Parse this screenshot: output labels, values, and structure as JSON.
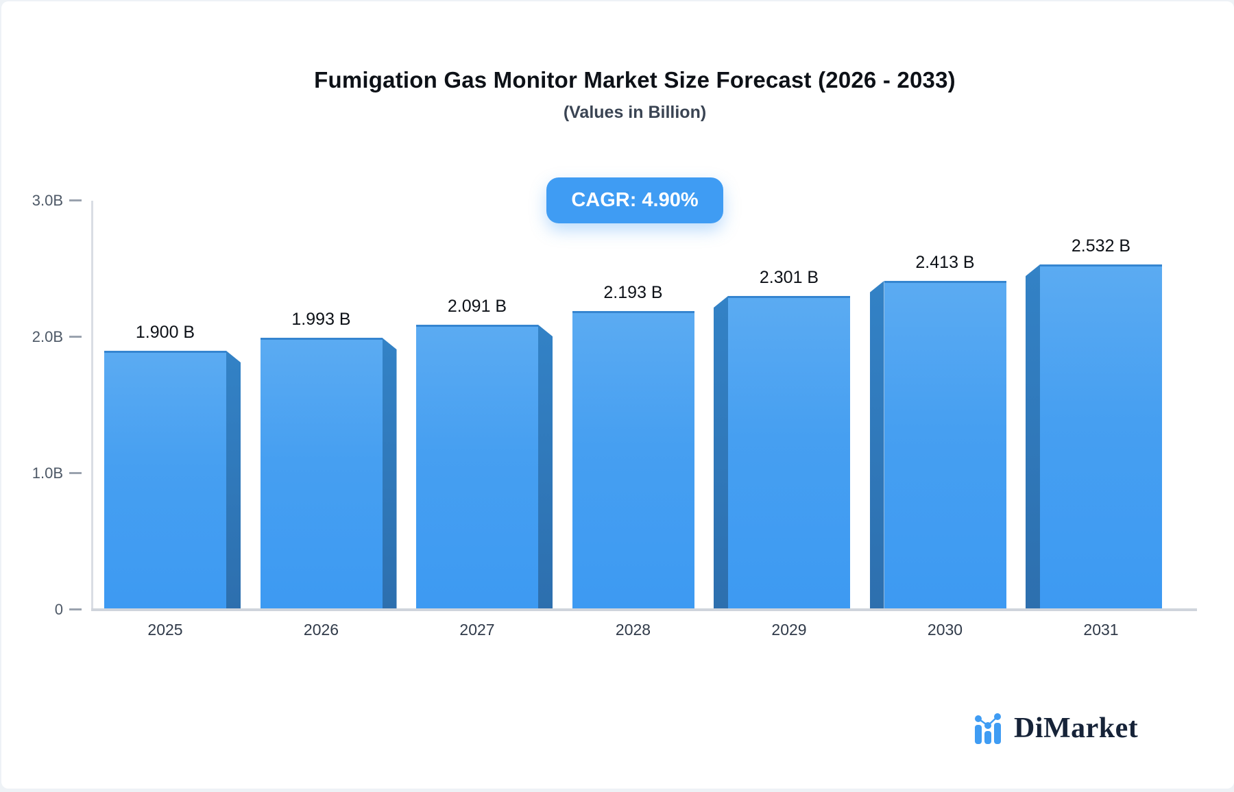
{
  "title": "Fumigation Gas Monitor Market Size Forecast (2026 - 2033)",
  "subtitle": "(Values in Billion)",
  "badge": {
    "label": "CAGR: 4.90%"
  },
  "logo": {
    "text": "DiMarket"
  },
  "colors": {
    "bar_face_top": "#5babf2",
    "bar_face_bottom": "#3d9af2",
    "bar_side": "#2e74b5",
    "badge_background": "#3f9cf3",
    "axis_line": "#d9dde4",
    "logo_navy": "#162338"
  },
  "chart_data": {
    "type": "bar",
    "title": "Fumigation Gas Monitor Market Size Forecast (2026 - 2033)",
    "subtitle": "(Values in Billion)",
    "unit": "Billion",
    "cagr": "4.90%",
    "categories": [
      "2025",
      "2026",
      "2027",
      "2028",
      "2029",
      "2030",
      "2031"
    ],
    "values": [
      1.9,
      1.993,
      2.091,
      2.193,
      2.301,
      2.413,
      2.532
    ],
    "value_labels": [
      "1.900 B",
      "1.993 B",
      "2.091 B",
      "2.193 B",
      "2.301 B",
      "2.413 B",
      "2.532 B"
    ],
    "xlabel": "",
    "ylabel": "",
    "ylim": [
      0,
      3.0
    ],
    "yticks": [
      {
        "label": "0",
        "value": 0.0
      },
      {
        "label": "1.0B",
        "value": 1.0
      },
      {
        "label": "2.0B",
        "value": 2.0
      },
      {
        "label": "3.0B",
        "value": 3.0
      }
    ],
    "grid": false,
    "legend": false,
    "bar_style": "3d-extruded"
  }
}
